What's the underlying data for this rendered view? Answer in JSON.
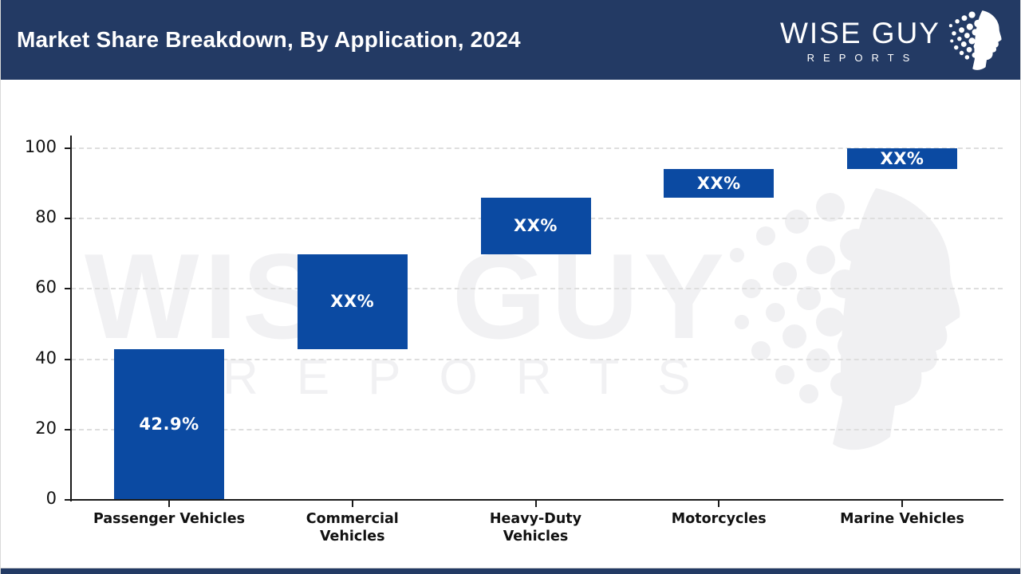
{
  "header": {
    "title": "Market Share Breakdown, By Application, 2024",
    "logo": {
      "line1": "WISE GUY",
      "line2": "REPORTS"
    }
  },
  "watermark": {
    "line1": "WISE GUY",
    "line2": "REPORTS"
  },
  "colors": {
    "header_bg": "#233a64",
    "bar_fill": "#0b4aa2",
    "bar_label": "#ffffff",
    "gridline": "#dedede",
    "axis": "#1a1a1a",
    "watermark": "#f1f1f3"
  },
  "chart_data": {
    "type": "bar",
    "subtype": "waterfall",
    "title": "Market Share Breakdown, By Application, 2024",
    "categories": [
      "Passenger Vehicles",
      "Commercial Vehicles",
      "Heavy-Duty Vehicles",
      "Motorcycles",
      "Marine Vehicles"
    ],
    "category_label_lines": [
      [
        "Passenger Vehicles"
      ],
      [
        "Commercial",
        "Vehicles"
      ],
      [
        "Heavy-Duty",
        "Vehicles"
      ],
      [
        "Motorcycles"
      ],
      [
        "Marine Vehicles"
      ]
    ],
    "segments": [
      {
        "category": "Passenger Vehicles",
        "start": 0,
        "end": 42.9,
        "value_label": "42.9%"
      },
      {
        "category": "Commercial Vehicles",
        "start": 42.9,
        "end": 69.9,
        "value_label": "XX%"
      },
      {
        "category": "Heavy-Duty Vehicles",
        "start": 69.9,
        "end": 85.9,
        "value_label": "XX%"
      },
      {
        "category": "Motorcycles",
        "start": 85.9,
        "end": 94.1,
        "value_label": "XX%"
      },
      {
        "category": "Marine Vehicles",
        "start": 94.1,
        "end": 100,
        "value_label": "XX%"
      }
    ],
    "xlabel": "",
    "ylabel": "",
    "ylim": [
      0,
      100
    ],
    "yticks": [
      0,
      20,
      40,
      60,
      80,
      100
    ],
    "grid": "horizontal dashed",
    "legend": "none"
  }
}
